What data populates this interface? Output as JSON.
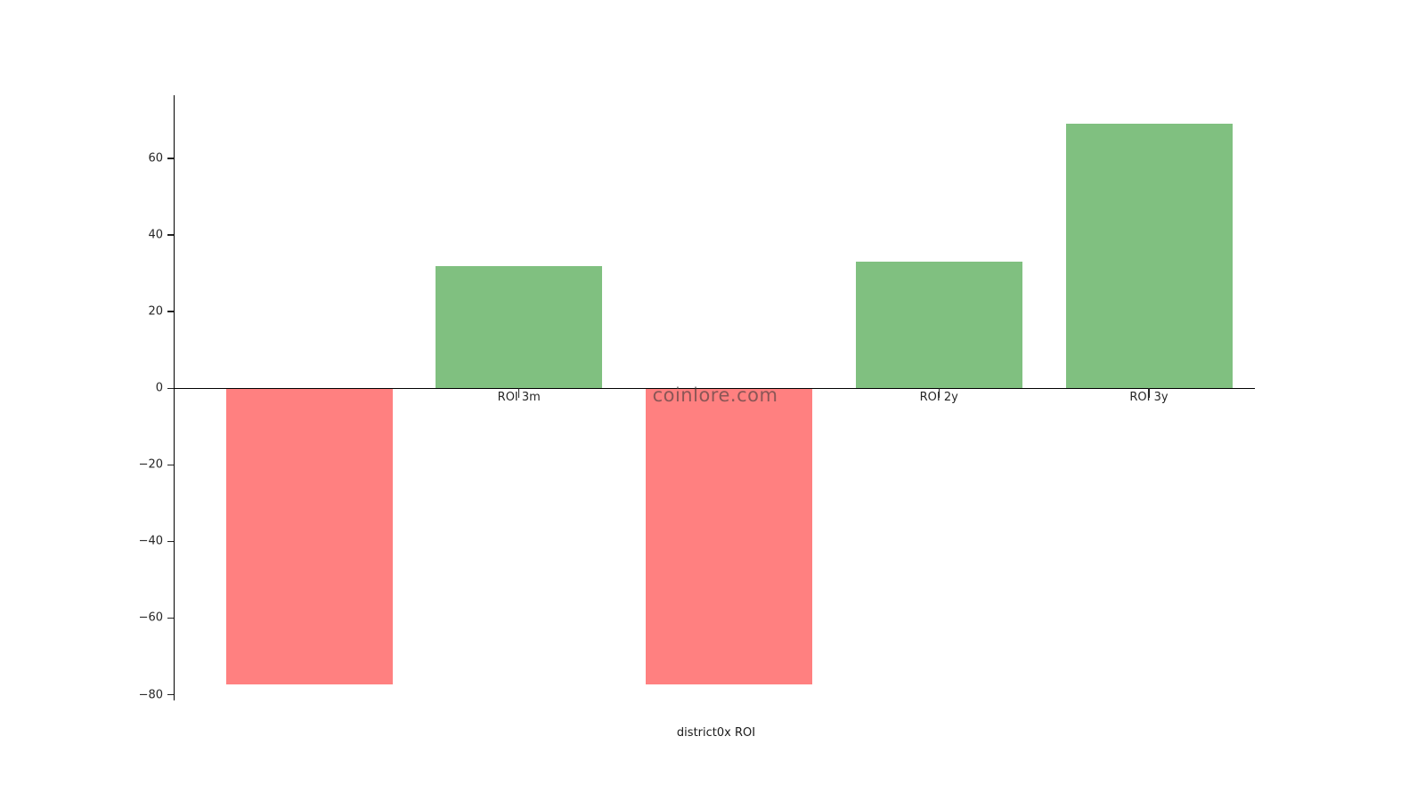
{
  "chart_data": {
    "type": "bar",
    "title": "",
    "xlabel": "district0x ROI",
    "ylabel": "",
    "categories": [
      "",
      "ROI 3m",
      "",
      "ROI 2y",
      "ROI 3y"
    ],
    "values": [
      -77,
      32,
      -77,
      33,
      69
    ],
    "positive_color": "#80c080",
    "negative_color": "#ff8080",
    "axis_color": "#000000",
    "tick_text_color": "#262626",
    "yticks": [
      60,
      40,
      20,
      0,
      -20,
      -40,
      -60,
      -80
    ],
    "ylim": [
      -81.5,
      76.5
    ],
    "grid": false,
    "legend": "none",
    "watermark": "coinlore.com",
    "background_color": "#ffffff"
  }
}
